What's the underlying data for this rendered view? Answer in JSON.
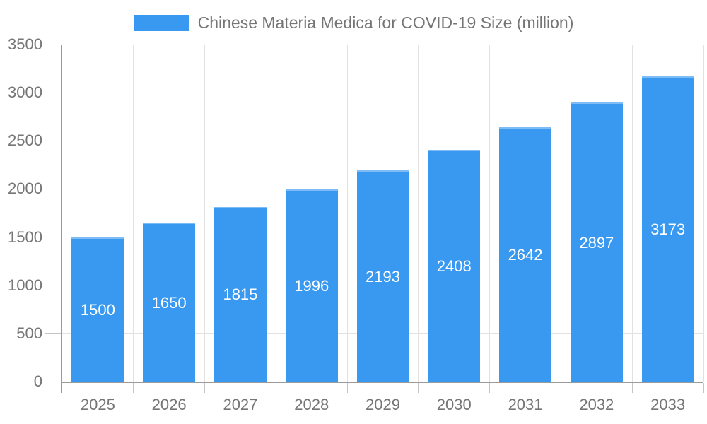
{
  "legend": {
    "swatch_color": "#3999F0",
    "label": "Chinese Materia Medica for COVID-19 Size (million)"
  },
  "colors": {
    "bar": "#3999F0",
    "bar_top_edge": "#74B9F4",
    "grid": "#E2E2E2",
    "axis": "#9B9B9B",
    "tick": "#C4C4C4",
    "text": "#757575",
    "value_label": "#FFFFFF",
    "background": "#FFFFFF"
  },
  "chart_data": {
    "type": "bar",
    "title": "Chinese Materia Medica for COVID-19 Size (million)",
    "categories": [
      "2025",
      "2026",
      "2027",
      "2028",
      "2029",
      "2030",
      "2031",
      "2032",
      "2033"
    ],
    "values": [
      1500,
      1650,
      1815,
      1996,
      2193,
      2408,
      2642,
      2897,
      3173
    ],
    "series": [
      {
        "name": "Chinese Materia Medica for COVID-19 Size (million)",
        "values": [
          1500,
          1650,
          1815,
          1996,
          2193,
          2408,
          2642,
          2897,
          3173
        ]
      }
    ],
    "xlabel": "",
    "ylabel": "",
    "ylim": [
      0,
      3500
    ],
    "ytick_step": 500,
    "yticks": [
      0,
      500,
      1000,
      1500,
      2000,
      2500,
      3000,
      3500
    ],
    "grid": "on",
    "legend_position": "top-center",
    "value_label_position": "inside-center"
  }
}
